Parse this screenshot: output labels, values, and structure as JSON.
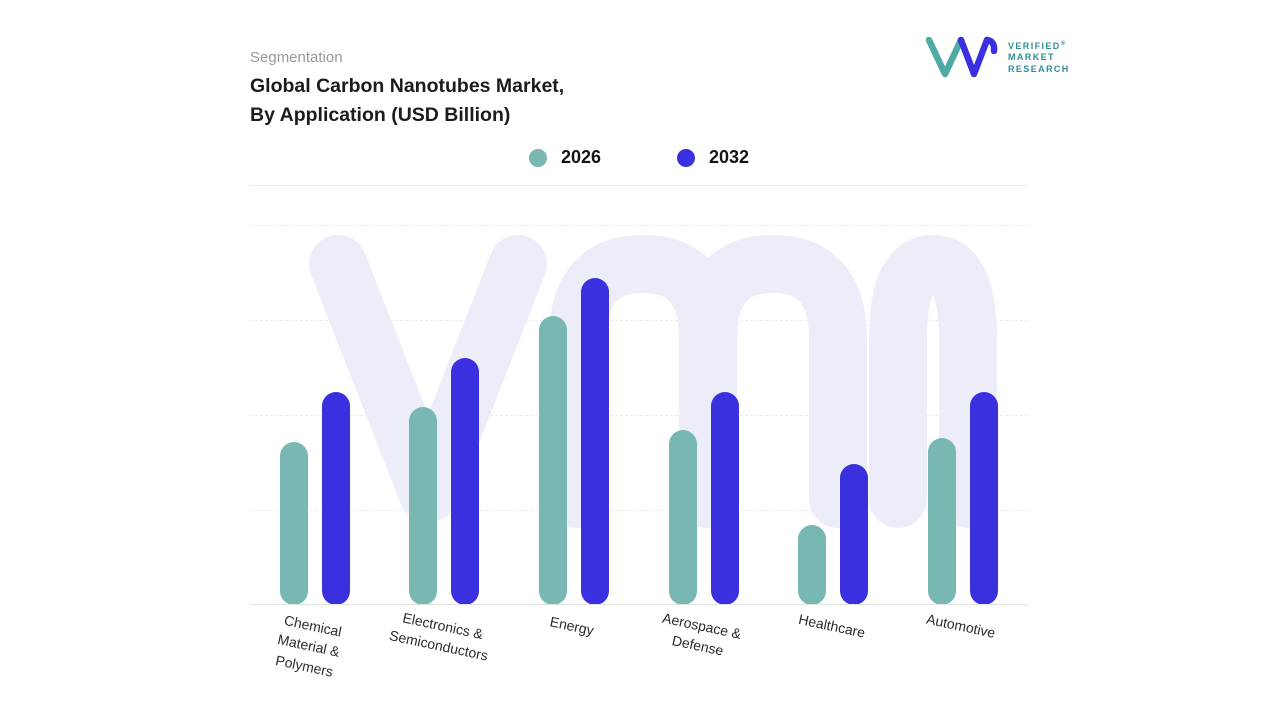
{
  "header": {
    "eyebrow": "Segmentation",
    "title_line1": "Global Carbon Nanotubes Market,",
    "title_line2": "By Application (USD Billion)"
  },
  "brand": {
    "line1": "VERIFIED",
    "line2": "MARKET",
    "line3": "RESEARCH",
    "registered": "®",
    "color": "#2f8f96",
    "mark_teal": "#4fa9a4",
    "mark_blue": "#3b30e0"
  },
  "chart_data": {
    "type": "bar",
    "title": "Global Carbon Nanotubes Market, By Application (USD Billion)",
    "unit": "USD Billion",
    "categories": [
      "Chemical Material & Polymers",
      "Electronics & Semiconductors",
      "Energy",
      "Aerospace & Defense",
      "Healthcare",
      "Automotive"
    ],
    "series": [
      {
        "name": "2026",
        "color": "#79b7b2",
        "values": [
          4.3,
          5.2,
          7.6,
          4.6,
          2.1,
          4.4
        ]
      },
      {
        "name": "2032",
        "color": "#3b30e0",
        "values": [
          5.6,
          6.5,
          8.6,
          5.6,
          3.7,
          5.6
        ]
      }
    ],
    "ylim": [
      0,
      10
    ],
    "grid": "dashed-horizontal",
    "legend_position": "top-center",
    "watermark": "vmr-monogram",
    "watermark_color": "#ecedf9"
  }
}
